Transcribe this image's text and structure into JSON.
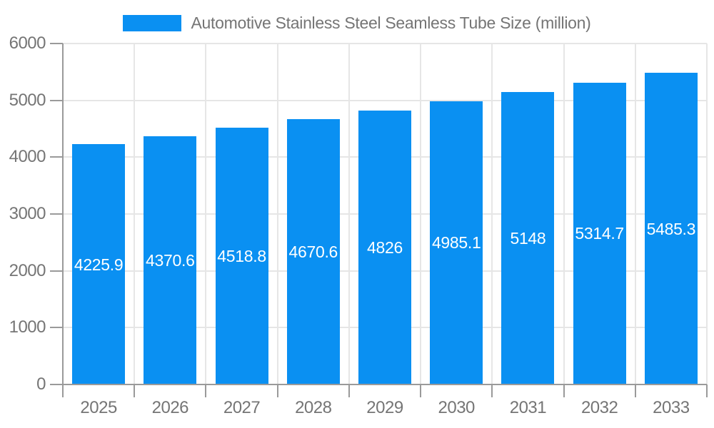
{
  "legend": {
    "label": "Automotive Stainless Steel Seamless Tube Size (million)"
  },
  "chart_data": {
    "type": "bar",
    "title": "Automotive Stainless Steel Seamless Tube Size (million)",
    "categories": [
      "2025",
      "2026",
      "2027",
      "2028",
      "2029",
      "2030",
      "2031",
      "2032",
      "2033"
    ],
    "series": [
      {
        "name": "Automotive Stainless Steel Seamless Tube Size (million)",
        "values": [
          4225.9,
          4370.6,
          4518.8,
          4670.6,
          4826,
          4985.1,
          5148,
          5314.7,
          5485.3
        ]
      }
    ],
    "value_labels": [
      "4225.9",
      "4370.6",
      "4518.8",
      "4670.6",
      "4826",
      "4985.1",
      "5148",
      "5314.7",
      "5485.3"
    ],
    "value_label_position": "middle-inside",
    "xlabel": "",
    "ylabel": "",
    "ylim": [
      0,
      6000
    ],
    "y_ticks": [
      0,
      1000,
      2000,
      3000,
      4000,
      5000,
      6000
    ],
    "grid": true,
    "legend_position": "top"
  },
  "colors": {
    "bar": "#0a90f2",
    "value_label": "#ffffff",
    "axis_line": "#9a9a9a",
    "gridline": "#e6e6e6",
    "tick_label": "#757575",
    "legend_text": "#757575",
    "background": "#ffffff"
  }
}
